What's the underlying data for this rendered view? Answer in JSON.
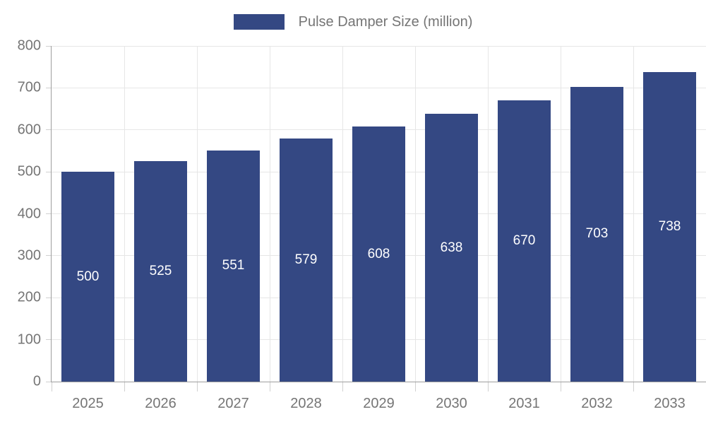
{
  "legend": {
    "label": "Pulse Damper Size (million)"
  },
  "colors": {
    "bar": "#344883",
    "legend_text": "#757575",
    "axis_line": "#9e9e9e",
    "grid_line": "#e6e6e6",
    "tick_mark": "#d0d0d0",
    "tick_label": "#757575",
    "value_label": "#ffffff",
    "background": "#ffffff"
  },
  "chart_data": {
    "type": "bar",
    "title": "",
    "xlabel": "",
    "ylabel": "",
    "categories": [
      "2025",
      "2026",
      "2027",
      "2028",
      "2029",
      "2030",
      "2031",
      "2032",
      "2033"
    ],
    "series": [
      {
        "name": "Pulse Damper Size (million)",
        "values": [
          500,
          525,
          551,
          579,
          608,
          638,
          670,
          703,
          738
        ]
      }
    ],
    "values": [
      500,
      525,
      551,
      579,
      608,
      638,
      670,
      703,
      738
    ],
    "ylim": [
      0,
      800
    ],
    "yticks": [
      0,
      100,
      200,
      300,
      400,
      500,
      600,
      700,
      800
    ],
    "grid": true,
    "legend_position": "top-center",
    "value_label_position": "inside-center"
  }
}
